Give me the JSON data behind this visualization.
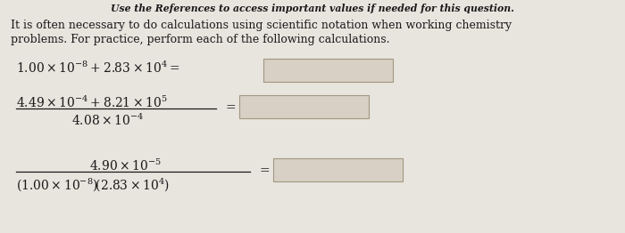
{
  "background_color": "#e8e4de",
  "text_color": "#1a1a1a",
  "box_facecolor": "#d8d0c4",
  "box_edgecolor": "#a09880",
  "figsize": [
    7.0,
    2.62
  ],
  "dpi": 100,
  "title": "Use the References to access important values if needed for this question.",
  "body_line1": "It is often necessary to do calculations using scientific notation when working chemistry",
  "body_line2": "problems. For practice, perform each of the following calculations.",
  "eq1": "$1.00 \\times 10^{-8} + 2.83 \\times 10^{4}$",
  "eq2_num": "$4.49 \\times 10^{-4} + 8.21 \\times 10^{5}$",
  "eq2_den": "$4.08 \\times 10^{-4}$",
  "eq3_num": "$4.90 \\times 10^{-5}$",
  "eq3_den": "$\\left(1.00 \\times 10^{-8}\\right)\\left(2.83 \\times 10^{4}\\right)$",
  "equals": "$=$"
}
